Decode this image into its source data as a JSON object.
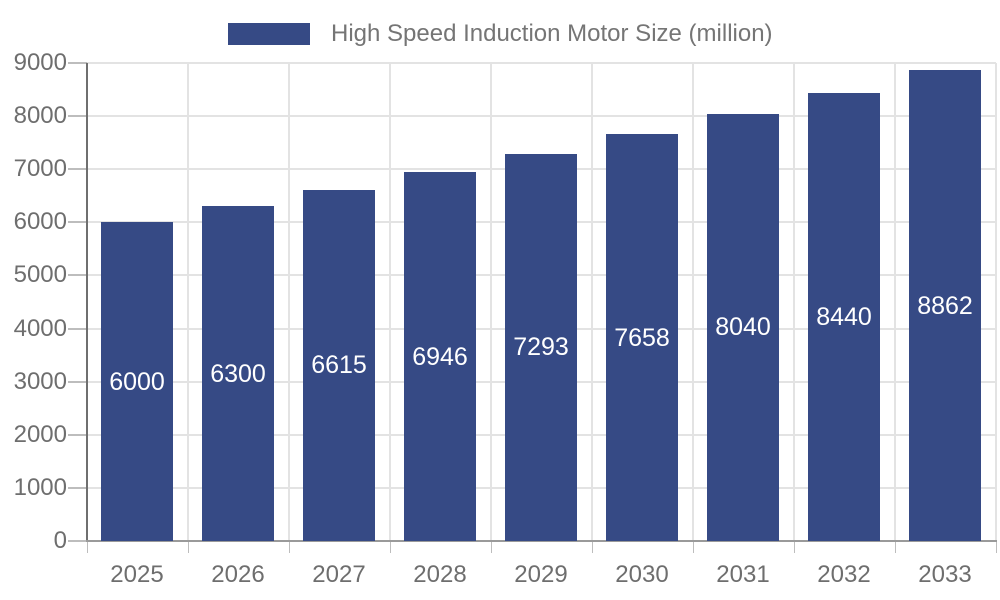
{
  "chart_data": {
    "type": "bar",
    "title": "High Speed Induction Motor Size (million)",
    "legend": {
      "position": "top",
      "label": "High Speed Induction Motor Size (million)"
    },
    "categories": [
      "2025",
      "2026",
      "2027",
      "2028",
      "2029",
      "2030",
      "2031",
      "2032",
      "2033"
    ],
    "series": [
      {
        "name": "High Speed Induction Motor Size (million)",
        "values": [
          6000,
          6300,
          6615,
          6946,
          7293,
          7658,
          8040,
          8440,
          8862
        ]
      }
    ],
    "value_labels_shown": true,
    "value_label_position": "inside-center",
    "xlabel": "",
    "ylabel": "",
    "ylim": [
      0,
      9000
    ],
    "ytick_step": 1000,
    "grid": true,
    "colors": {
      "bar": "#364a85",
      "bar_value_label": "#ffffff",
      "axis_text": "#6e6e6e",
      "legend_text": "#757575",
      "gridline": "#e3e3e3",
      "y_axis_line": "#6f6f6f",
      "x_axis_line": "#9a9a9a",
      "tick": "#bdbdbd",
      "background": "#ffffff"
    }
  }
}
